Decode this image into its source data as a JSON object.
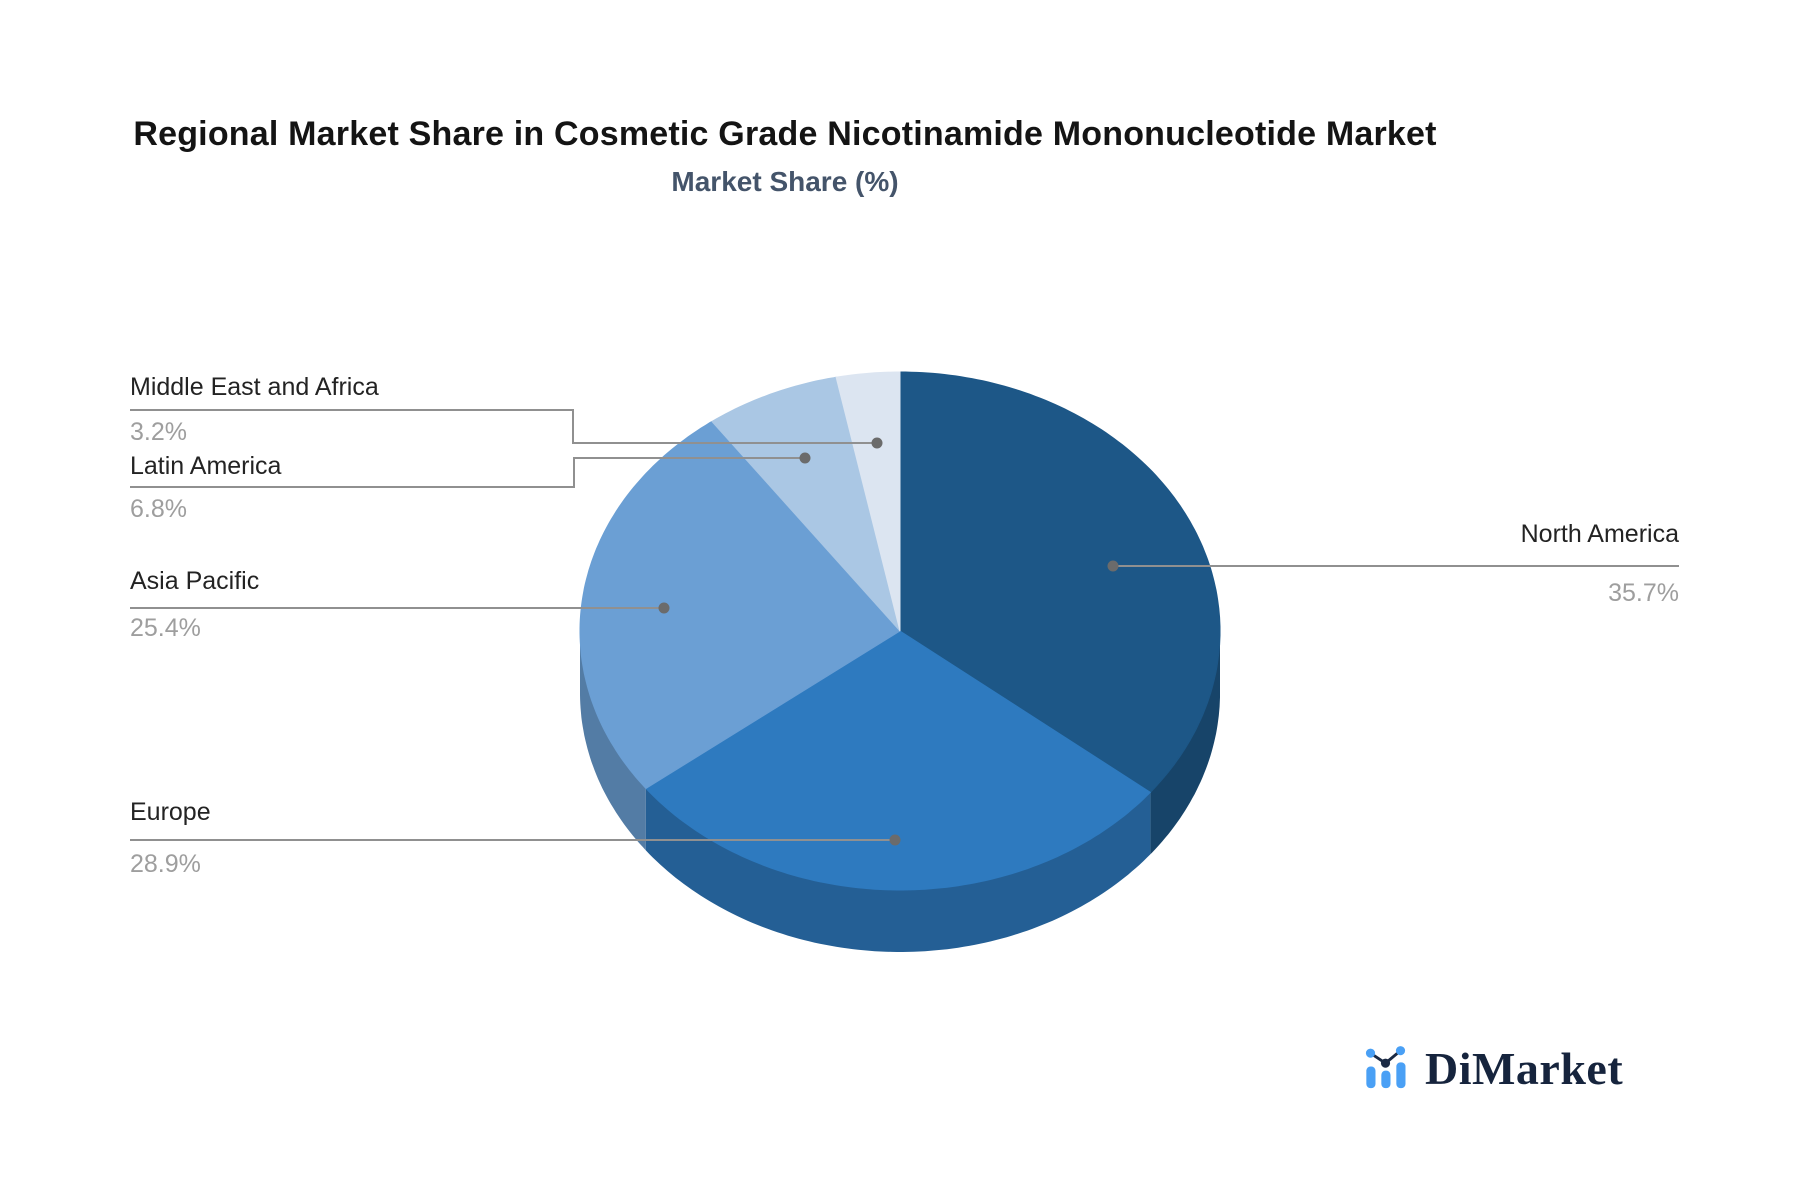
{
  "title": "Regional Market Share in Cosmetic Grade Nicotinamide Mononucleotide Market",
  "subtitle": "Market Share (%)",
  "logo": {
    "text": "DiMarket"
  },
  "chart_data": {
    "type": "pie",
    "title": "Regional Market Share in Cosmetic Grade Nicotinamide Mononucleotide Market",
    "subtitle": "Market Share (%)",
    "unit": "%",
    "effect": "3d",
    "start_angle_deg": 0,
    "direction": "clockwise",
    "legend_position": "none",
    "labels": [
      "North America",
      "Europe",
      "Asia Pacific",
      "Latin America",
      "Middle East and Africa"
    ],
    "values": [
      35.7,
      28.9,
      25.4,
      6.8,
      3.2
    ],
    "display_values": [
      "35.7%",
      "28.9%",
      "25.4%",
      "6.8%",
      "3.2%"
    ],
    "colors": [
      "#1D5787",
      "#2E7ABF",
      "#6B9FD4",
      "#AAC7E4",
      "#DCE5F1"
    ],
    "connector_color": "#909090",
    "dot_color": "#6b6b6b"
  }
}
